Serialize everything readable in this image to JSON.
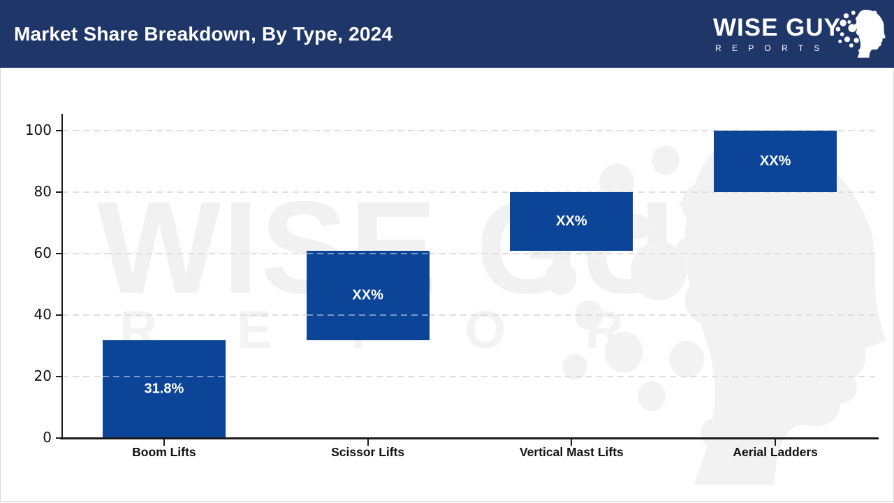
{
  "header": {
    "title": "Market Share Breakdown, By Type, 2024",
    "bg_color": "#1f3768",
    "logo": {
      "name_line": "WISE GUY",
      "sub_line": "R E P O R T S"
    }
  },
  "watermark": {
    "line1": "WISE GUY",
    "line2": "R E P O R T S"
  },
  "chart_data": {
    "type": "bar",
    "subtype": "floating-segment-bars",
    "title": "Market Share Breakdown, By Type, 2024",
    "categories": [
      "Boom Lifts",
      "Scissor Lifts",
      "Vertical Mast Lifts",
      "Aerial Ladders"
    ],
    "bars": [
      {
        "category": "Boom Lifts",
        "start": 0,
        "end": 31.8,
        "label": "31.8%"
      },
      {
        "category": "Scissor Lifts",
        "start": 31.8,
        "end": 61,
        "label": "XX%"
      },
      {
        "category": "Vertical Mast Lifts",
        "start": 61,
        "end": 80,
        "label": "XX%"
      },
      {
        "category": "Aerial Ladders",
        "start": 80,
        "end": 100,
        "label": "XX%"
      }
    ],
    "yticks": [
      0,
      20,
      40,
      60,
      80,
      100
    ],
    "ylim": [
      0,
      105
    ],
    "xlabel": "",
    "ylabel": "",
    "legend": "none",
    "grid": {
      "axis": "y",
      "style": "dashed",
      "color": "#dedede"
    },
    "bar_color": "#0c4497",
    "bar_label_color": "#ffffff"
  }
}
